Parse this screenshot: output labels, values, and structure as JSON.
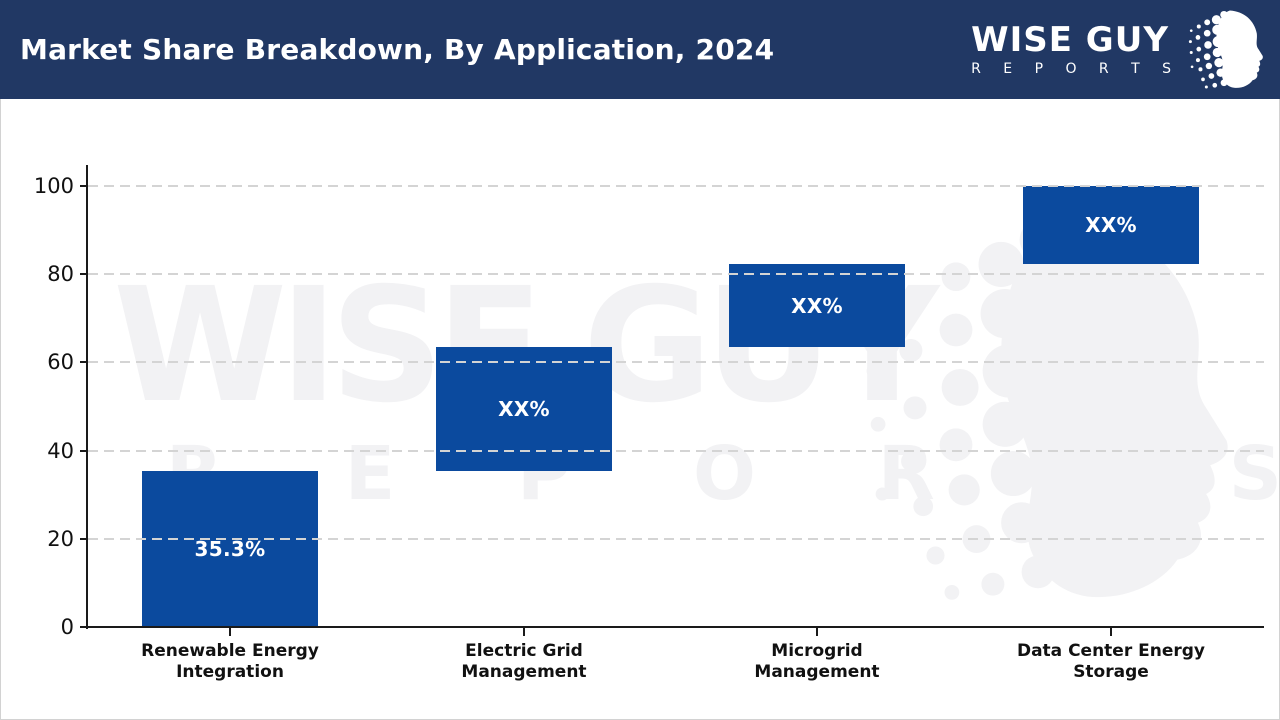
{
  "header": {
    "title": "Market Share Breakdown, By Application, 2024",
    "logo": {
      "wordmark": "WISE GUY",
      "subtext": "R E P O R T S"
    }
  },
  "watermark": {
    "wordmark": "WISE GUY",
    "subtext": "R E P O R T S"
  },
  "chart_data": {
    "type": "bar",
    "subtype": "floating stacked-segment (waterfall-style market share)",
    "title": "Market Share Breakdown, By Application, 2024",
    "categories": [
      "Renewable Energy Integration",
      "Electric Grid Management",
      "Microgrid Management",
      "Data Center Energy Storage"
    ],
    "category_lines": [
      [
        "Renewable Energy",
        "Integration"
      ],
      [
        "Electric Grid",
        "Management"
      ],
      [
        "Microgrid",
        "Management"
      ],
      [
        "Data Center Energy",
        "Storage"
      ]
    ],
    "bars": [
      {
        "category": "Renewable Energy Integration",
        "start": 0,
        "end": 35.3,
        "label": "35.3%"
      },
      {
        "category": "Electric Grid Management",
        "start": 35.3,
        "end": 63.5,
        "label": "XX%"
      },
      {
        "category": "Microgrid Management",
        "start": 63.5,
        "end": 82.3,
        "label": "XX%"
      },
      {
        "category": "Data Center Energy Storage",
        "start": 82.3,
        "end": 100,
        "label": "XX%"
      }
    ],
    "xlabel": "",
    "ylabel": "",
    "ylim": [
      0,
      100
    ],
    "yticks": [
      0,
      20,
      40,
      60,
      80,
      100
    ],
    "grid": "horizontal dashed lines drawn over bars",
    "legend": "none",
    "bar_color": "#0b4a9e",
    "bar_label_color": "#ffffff"
  },
  "colors": {
    "header_bg": "#213864",
    "bar": "#0b4a9e",
    "grid": "#d4d4d4",
    "axis": "#1a1a1a",
    "watermark": "#f2f2f4",
    "page_bg": "#ffffff",
    "page_border": "#d2d2d2"
  }
}
